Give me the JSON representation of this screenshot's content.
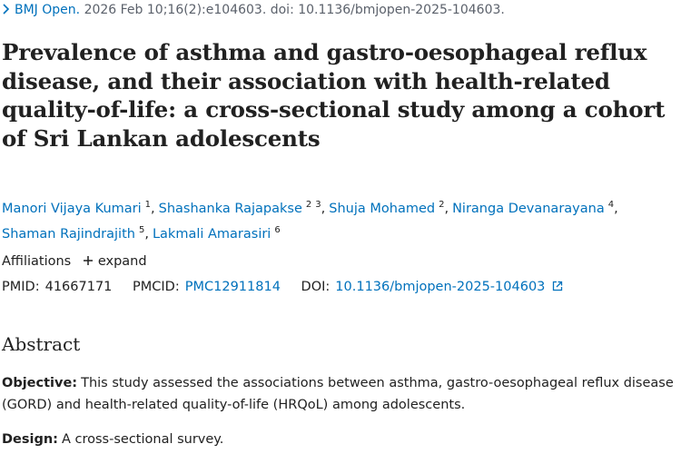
{
  "citation": {
    "journal": "BMJ Open.",
    "details": "2026 Feb 10;16(2):e104603. doi: 10.1136/bmjopen-2025-104603."
  },
  "title": "Prevalence of asthma and gastro-oesophageal reflux disease, and their association with health-related quality-of-life: a cross-sectional study among a cohort of Sri Lankan adolescents",
  "authors": [
    {
      "name": "Manori Vijaya Kumari",
      "affiliations": [
        "1"
      ]
    },
    {
      "name": "Shashanka Rajapakse",
      "affiliations": [
        "2",
        "3"
      ]
    },
    {
      "name": "Shuja Mohamed",
      "affiliations": [
        "2"
      ]
    },
    {
      "name": "Niranga Devanarayana",
      "affiliations": [
        "4"
      ]
    },
    {
      "name": "Shaman Rajindrajith",
      "affiliations": [
        "5"
      ]
    },
    {
      "name": "Lakmali Amarasiri",
      "affiliations": [
        "6"
      ]
    }
  ],
  "affiliations": {
    "label": "Affiliations",
    "toggle": "expand"
  },
  "identifiers": {
    "pmid_label": "PMID:",
    "pmid": "41667171",
    "pmcid_label": "PMCID:",
    "pmcid": "PMC12911814",
    "doi_label": "DOI:",
    "doi": "10.1136/bmjopen-2025-104603"
  },
  "abstract": {
    "heading": "Abstract",
    "sections": [
      {
        "label": "Objective:",
        "text": "This study assessed the associations between asthma, gastro-oesophageal reflux disease (GORD) and health-related quality-of-life (HRQoL) among adolescents."
      },
      {
        "label": "Design:",
        "text": "A cross-sectional survey."
      }
    ]
  }
}
